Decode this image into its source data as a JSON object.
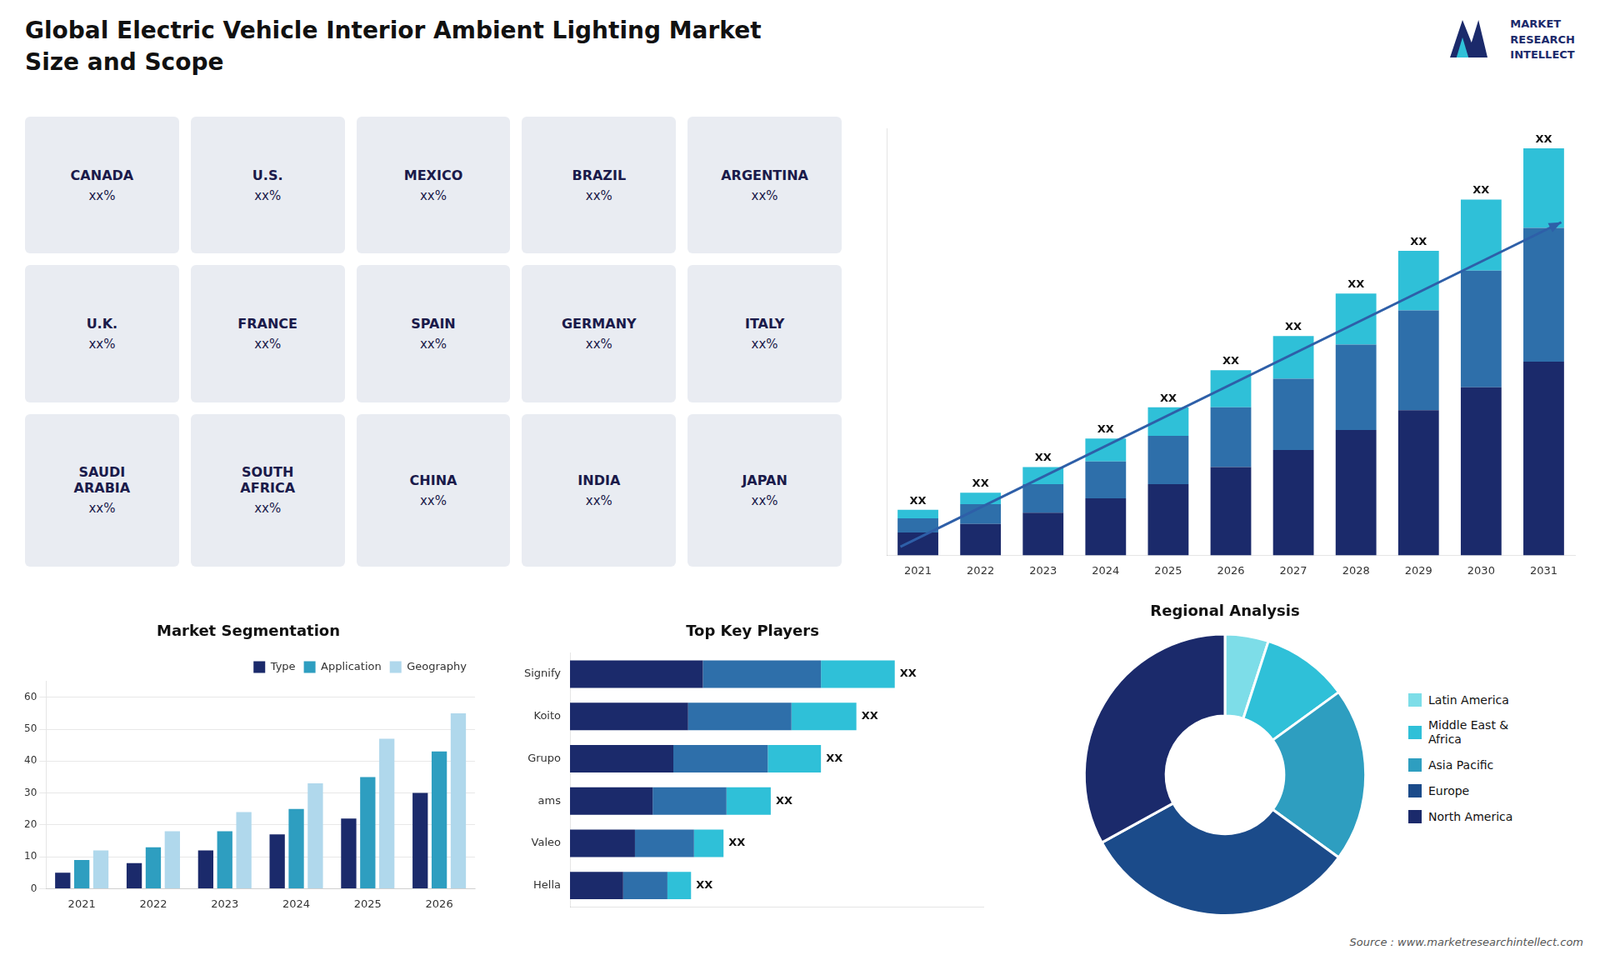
{
  "title": "Global Electric Vehicle Interior Ambient Lighting Market",
  "subtitle": "Size and Scope",
  "annotations": [
    "MARKET",
    "RESEARCH",
    "INTELLECT",
    "Source : www.marketresearchintellect.com"
  ],
  "chart_data": [
    {
      "type": "map",
      "categories": [
        "CANADA",
        "U.S.",
        "MEXICO",
        "BRAZIL",
        "ARGENTINA",
        "U.K.",
        "FRANCE",
        "SPAIN",
        "GERMANY",
        "ITALY",
        "SAUDI\nARABIA",
        "SOUTH\nAFRICA",
        "CHINA",
        "INDIA",
        "JAPAN"
      ],
      "value_labels": [
        "xx%",
        "xx%",
        "xx%",
        "xx%",
        "xx%",
        "xx%",
        "xx%",
        "xx%",
        "xx%",
        "xx%",
        "xx%",
        "xx%",
        "xx%",
        "xx%",
        "xx%"
      ]
    },
    {
      "type": "bar",
      "stacked": true,
      "categories": [
        "2021",
        "2022",
        "2023",
        "2024",
        "2025",
        "2026",
        "2027",
        "2028",
        "2029",
        "2030",
        "2031"
      ],
      "series": [
        {
          "color": "#1b2a6b",
          "values": [
            0.8,
            1.1,
            1.5,
            2.0,
            2.5,
            3.1,
            3.7,
            4.4,
            5.1,
            5.9,
            6.8
          ]
        },
        {
          "color": "#2e6faa",
          "values": [
            0.5,
            0.7,
            1.0,
            1.3,
            1.7,
            2.1,
            2.5,
            3.0,
            3.5,
            4.1,
            4.7
          ]
        },
        {
          "color": "#2fc0d8",
          "values": [
            0.3,
            0.4,
            0.6,
            0.8,
            1.0,
            1.3,
            1.5,
            1.8,
            2.1,
            2.5,
            2.8
          ],
          "value_labels": [
            "XX",
            "XX",
            "XX",
            "XX",
            "XX",
            "XX",
            "XX",
            "XX",
            "XX",
            "XX",
            "XX"
          ]
        }
      ],
      "ylim": [
        0,
        15
      ],
      "tick_labels": "x",
      "grid": false
    },
    {
      "type": "bar",
      "title": "Market Segmentation",
      "categories": [
        "2021",
        "2022",
        "2023",
        "2024",
        "2025",
        "2026"
      ],
      "series": [
        {
          "name": "Type",
          "color": "#1b2a6b",
          "values": [
            5,
            8,
            12,
            17,
            22,
            30
          ]
        },
        {
          "name": "Application",
          "color": "#2e9ec0",
          "values": [
            9,
            13,
            18,
            25,
            35,
            43
          ]
        },
        {
          "name": "Geography",
          "color": "#b0d8ec",
          "values": [
            12,
            18,
            24,
            33,
            47,
            55
          ]
        }
      ],
      "ylim": [
        0,
        65
      ],
      "yticks": [
        0,
        10,
        20,
        30,
        40,
        50,
        60
      ],
      "grid": true,
      "legend": "top"
    },
    {
      "type": "bar",
      "orientation": "horizontal",
      "stacked": true,
      "title": "Top Key Players",
      "categories": [
        "Signify",
        "Koito",
        "Grupo",
        "ams",
        "Valeo",
        "Hella"
      ],
      "series": [
        {
          "color": "#1b2a6b",
          "values": [
            4.5,
            4.0,
            3.5,
            2.8,
            2.2,
            1.8
          ]
        },
        {
          "color": "#2e6faa",
          "values": [
            4.0,
            3.5,
            3.2,
            2.5,
            2.0,
            1.5
          ]
        },
        {
          "color": "#2fc0d8",
          "values": [
            2.5,
            2.2,
            1.8,
            1.5,
            1.0,
            0.8
          ],
          "value_labels": [
            "XX",
            "XX",
            "XX",
            "XX",
            "XX",
            "XX"
          ]
        }
      ],
      "xlim": [
        0,
        14
      ],
      "tick_labels": "y",
      "grid": false
    },
    {
      "type": "doughnut",
      "title": "Regional Analysis",
      "categories": [
        "Latin America",
        "Middle East &\nAfrica",
        "Asia Pacific",
        "Europe",
        "North America"
      ],
      "values": [
        5,
        10,
        20,
        32,
        33
      ],
      "colors": [
        "#7ddde8",
        "#2fc0d8",
        "#2e9ec0",
        "#1b4b8a",
        "#1b2a6b"
      ],
      "legend": "right"
    }
  ]
}
